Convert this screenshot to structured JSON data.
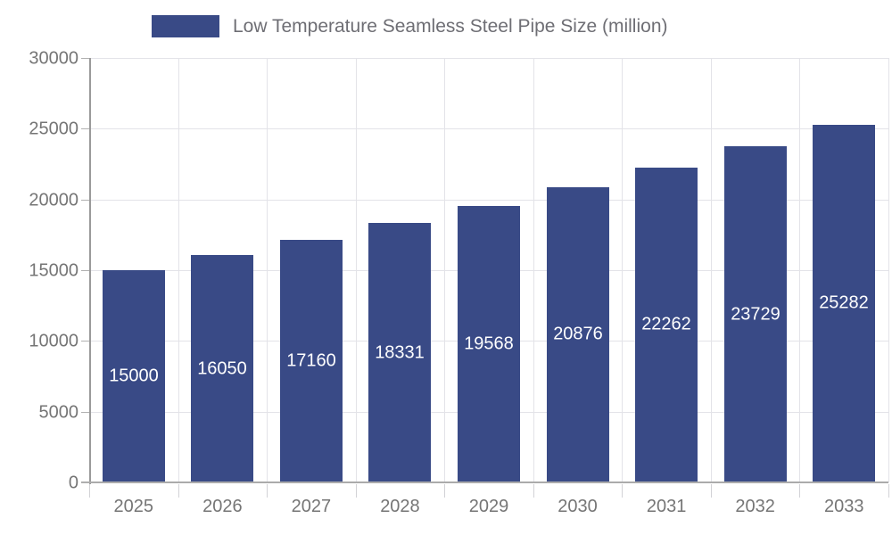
{
  "legend": {
    "label": "Low Temperature Seamless Steel Pipe Size (million)"
  },
  "chart_data": {
    "type": "bar",
    "title": "",
    "xlabel": "",
    "ylabel": "",
    "series_name": "Low Temperature Seamless Steel Pipe Size (million)",
    "categories": [
      "2025",
      "2026",
      "2027",
      "2028",
      "2029",
      "2030",
      "2031",
      "2032",
      "2033"
    ],
    "values": [
      15000,
      16050,
      17160,
      18331,
      19568,
      20876,
      22262,
      23729,
      25282
    ],
    "ylim": [
      0,
      30000
    ],
    "yticks": [
      0,
      5000,
      10000,
      15000,
      20000,
      25000,
      30000
    ],
    "grid": true,
    "legend_position": "top",
    "bar_labels_inside": true
  },
  "colors": {
    "bar": "#394a86",
    "bar_label_text": "#ffffff",
    "gridline": "#e3e3e8",
    "axis_line": "#a0a0a0",
    "tick_text": "#757575",
    "legend_text": "#6e6e74",
    "background": "#ffffff"
  }
}
